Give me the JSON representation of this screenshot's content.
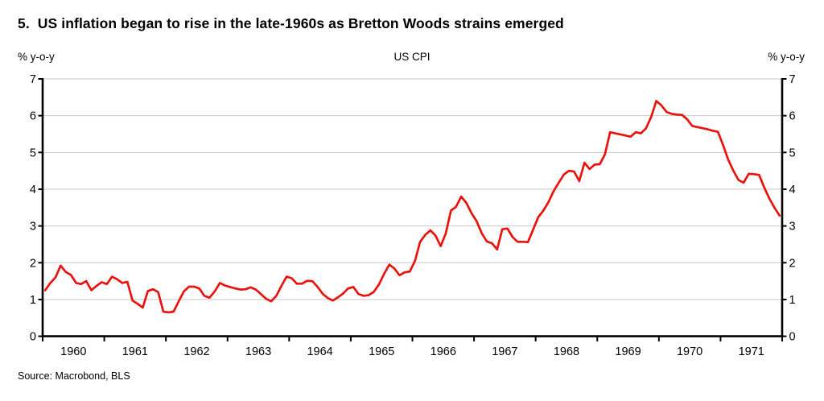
{
  "header": {
    "title_number": "5.",
    "title_text": "US inflation began to rise in the late-1960s as Bretton Woods strains emerged"
  },
  "footer": {
    "source": "Source: Macrobond, BLS"
  },
  "chart_data": {
    "type": "line",
    "title": "US CPI",
    "ylabel_left": "% y-o-y",
    "ylabel_right": "% y-o-y",
    "ylim": [
      0,
      7
    ],
    "yticks": [
      0,
      1,
      2,
      3,
      4,
      5,
      6,
      7
    ],
    "x_tick_labels": [
      "1960",
      "1961",
      "1962",
      "1963",
      "1964",
      "1965",
      "1966",
      "1967",
      "1968",
      "1969",
      "1970",
      "1971"
    ],
    "xlim_years": [
      1960,
      1972
    ],
    "grid": "horizontal",
    "legend": "none",
    "colors": {
      "line": "#e9130d",
      "axis": "#000000",
      "gridline": "#c8c8c8",
      "text": "#000000"
    },
    "series": [
      {
        "name": "US CPI",
        "frequency": "monthly",
        "start": "1960-01",
        "end": "1971-12",
        "values": [
          1.25,
          1.45,
          1.6,
          1.92,
          1.75,
          1.67,
          1.45,
          1.42,
          1.5,
          1.25,
          1.37,
          1.47,
          1.42,
          1.62,
          1.55,
          1.45,
          1.48,
          0.97,
          0.88,
          0.78,
          1.23,
          1.28,
          1.2,
          0.67,
          0.65,
          0.67,
          0.95,
          1.22,
          1.35,
          1.35,
          1.3,
          1.1,
          1.05,
          1.22,
          1.45,
          1.38,
          1.34,
          1.3,
          1.27,
          1.28,
          1.33,
          1.27,
          1.15,
          1.02,
          0.95,
          1.1,
          1.37,
          1.62,
          1.58,
          1.43,
          1.43,
          1.51,
          1.5,
          1.35,
          1.16,
          1.04,
          0.97,
          1.06,
          1.16,
          1.3,
          1.34,
          1.15,
          1.1,
          1.12,
          1.21,
          1.41,
          1.7,
          1.95,
          1.84,
          1.66,
          1.74,
          1.76,
          2.05,
          2.57,
          2.76,
          2.88,
          2.74,
          2.45,
          2.8,
          3.42,
          3.52,
          3.8,
          3.63,
          3.35,
          3.13,
          2.8,
          2.58,
          2.53,
          2.36,
          2.91,
          2.93,
          2.7,
          2.57,
          2.57,
          2.56,
          2.9,
          3.24,
          3.42,
          3.65,
          3.95,
          4.18,
          4.4,
          4.5,
          4.48,
          4.22,
          4.72,
          4.55,
          4.67,
          4.68,
          4.95,
          5.55,
          5.52,
          5.49,
          5.46,
          5.43,
          5.55,
          5.52,
          5.66,
          5.97,
          6.4,
          6.28,
          6.1,
          6.05,
          6.03,
          6.02,
          5.9,
          5.72,
          5.69,
          5.66,
          5.63,
          5.59,
          5.56,
          5.2,
          4.8,
          4.5,
          4.25,
          4.18,
          4.42,
          4.41,
          4.39,
          4.05,
          3.75,
          3.5,
          3.28
        ]
      }
    ]
  }
}
